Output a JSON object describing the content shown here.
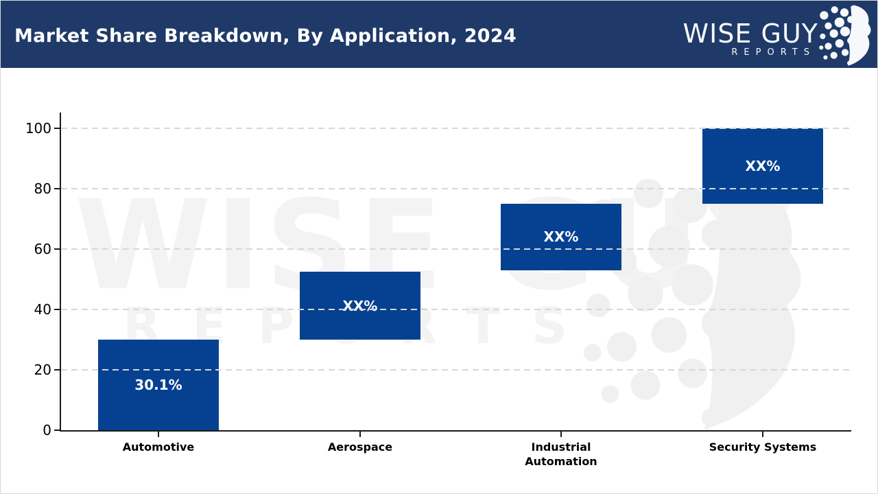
{
  "header": {
    "title": "Market Share Breakdown, By Application, 2024",
    "background_color": "#1f3a68",
    "brand": {
      "name": "WISE GUY",
      "subname": "REPORTS"
    }
  },
  "watermark": {
    "line1": "WISE GUY",
    "line2": "REPORTS"
  },
  "chart_data": {
    "type": "bar",
    "variant": "floating-waterfall-percentage",
    "title": "Market Share Breakdown, By Application, 2024",
    "categories": [
      "Automotive",
      "Aerospace",
      "Industrial\nAutomation",
      "Security Systems"
    ],
    "segments": [
      {
        "category": "Automotive",
        "start": 0,
        "end": 30.1,
        "label": "30.1%"
      },
      {
        "category": "Aerospace",
        "start": 30,
        "end": 52.5,
        "label": "XX%"
      },
      {
        "category": "Industrial Automation",
        "start": 53,
        "end": 75,
        "label": "XX%"
      },
      {
        "category": "Security Systems",
        "start": 75,
        "end": 100,
        "label": "XX%"
      }
    ],
    "yticks": [
      0,
      20,
      40,
      60,
      80,
      100
    ],
    "ylim": [
      0,
      105
    ],
    "xlabel": "",
    "ylabel": "",
    "grid": "horizontal-dashed",
    "grid_color": "#d7d7d7",
    "bar_color": "#054190",
    "bar_label_color": "#ffffff",
    "axis_color": "#1a1a1a"
  }
}
